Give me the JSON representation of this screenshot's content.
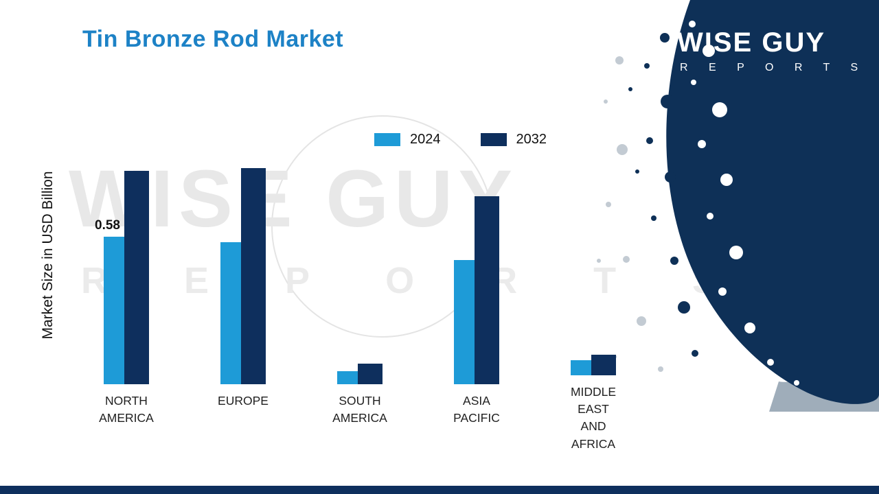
{
  "header": {
    "title": "Tin Bronze Rod Market"
  },
  "logo": {
    "brand": "WISE GUY",
    "sub": "R E P O R T S"
  },
  "watermark": {
    "line1": "WISE GUY",
    "line2": "R E P O R T S"
  },
  "legend": {
    "items": [
      {
        "label": "2024",
        "color": "#1e9bd7"
      },
      {
        "label": "2032",
        "color": "#0e2f5d"
      }
    ]
  },
  "chart_data": {
    "type": "bar",
    "title": "Tin Bronze Rod Market",
    "ylabel": "Market Size in USD Billion",
    "unit": "USD Billion",
    "categories": [
      "North America",
      "Europe",
      "South America",
      "Asia Pacific",
      "Middle East and Africa"
    ],
    "tick_labels": [
      [
        "NORTH",
        "AMERICA"
      ],
      [
        "EUROPE"
      ],
      [
        "SOUTH",
        "AMERICA"
      ],
      [
        "ASIA",
        "PACIFIC"
      ],
      [
        "MIDDLE",
        "EAST",
        "AND",
        "AFRICA"
      ]
    ],
    "series": [
      {
        "name": "2024",
        "color": "#1e9bd7",
        "values": [
          0.58,
          0.56,
          0.05,
          0.49,
          0.06
        ]
      },
      {
        "name": "2032",
        "color": "#0e2f5d",
        "values": [
          0.84,
          0.85,
          0.08,
          0.74,
          0.08
        ]
      }
    ],
    "annotations": [
      {
        "text": "0.58",
        "category_index": 0,
        "series_index": 0
      }
    ],
    "ylim": [
      0,
      1.0
    ],
    "grid": false,
    "legend_position": "top"
  },
  "colors": {
    "title_blue": "#1d82c6",
    "series_2024": "#1e9bd7",
    "series_2032": "#0e2f5d",
    "navy_graphic": "#0e3057",
    "watermark_gray": "#e8e8e8",
    "footer_navy": "#0e2f5d"
  }
}
